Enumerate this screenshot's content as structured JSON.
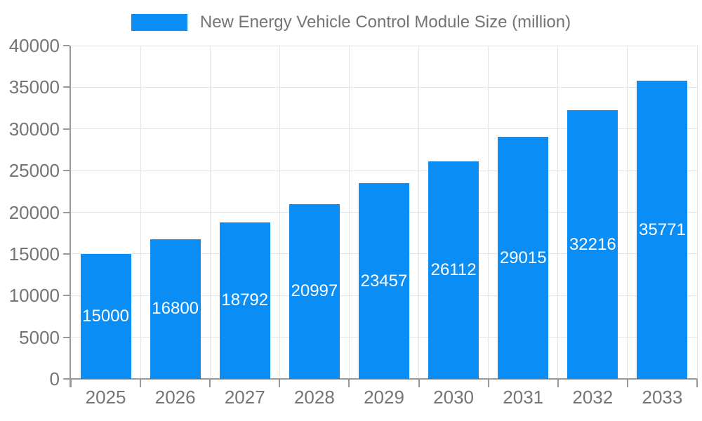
{
  "chart_data": {
    "type": "bar",
    "title": "",
    "legend": "New Energy Vehicle Control Module Size (million)",
    "categories": [
      "2025",
      "2026",
      "2027",
      "2028",
      "2029",
      "2030",
      "2031",
      "2032",
      "2033"
    ],
    "values": [
      15000,
      16800,
      18792,
      20997,
      23457,
      26112,
      29015,
      32216,
      35771
    ],
    "xlabel": "",
    "ylabel": "",
    "ylim": [
      0,
      40000
    ],
    "yticks": [
      0,
      5000,
      10000,
      15000,
      20000,
      25000,
      30000,
      35000,
      40000
    ],
    "grid": true,
    "legend_position": "top-center",
    "bar_label_position": "inside-center",
    "colors": {
      "bar": "#0a8df5",
      "bar_label": "#ffffff",
      "axis_text": "#757575",
      "legend_text": "#757575",
      "grid_line": "#e4e4e4",
      "axis_line": "#999999",
      "background": "#ffffff"
    }
  }
}
